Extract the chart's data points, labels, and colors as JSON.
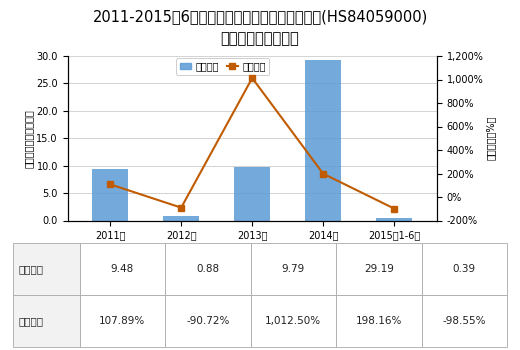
{
  "title_line1": "2011-2015年6月煤气、乙炔等气体发生器的零件(HS84059000)",
  "title_line2": "进口总额及增速统计",
  "categories": [
    "2011年",
    "2012年",
    "2013年",
    "2014年",
    "2015年1-6月"
  ],
  "bar_values": [
    9.48,
    0.88,
    9.79,
    29.19,
    0.39
  ],
  "growth_values": [
    107.89,
    -90.72,
    1012.5,
    198.16,
    -98.55
  ],
  "bar_color": "#5b9bd5",
  "line_color": "#c05b00",
  "marker_color": "#c05b00",
  "left_ylabel": "进口金额（百万美元）",
  "right_ylabel": "同比增速（%）",
  "left_ylim": [
    0,
    30
  ],
  "left_yticks": [
    0.0,
    5.0,
    10.0,
    15.0,
    20.0,
    25.0,
    30.0
  ],
  "right_ylim": [
    -200,
    1200
  ],
  "right_yticks": [
    -200,
    0,
    200,
    400,
    600,
    800,
    1000,
    1200
  ],
  "right_yticklabels": [
    "-200%",
    "0%",
    "200%",
    "400%",
    "600%",
    "800%",
    "1,000%",
    "1,200%"
  ],
  "legend_bar_label": "进口金额",
  "legend_line_label": "同比增长",
  "table_row1_label": "进口金额",
  "table_row2_label": "同比增长",
  "table_row1_values": [
    "9.48",
    "0.88",
    "9.79",
    "29.19",
    "0.39"
  ],
  "table_row2_values": [
    "107.89%",
    "-90.72%",
    "1,012.50%",
    "198.16%",
    "-98.55%"
  ],
  "background_color": "#ffffff",
  "grid_color": "#cccccc",
  "title_fontsize": 10.5,
  "tick_fontsize": 7,
  "table_fontsize": 7.5
}
